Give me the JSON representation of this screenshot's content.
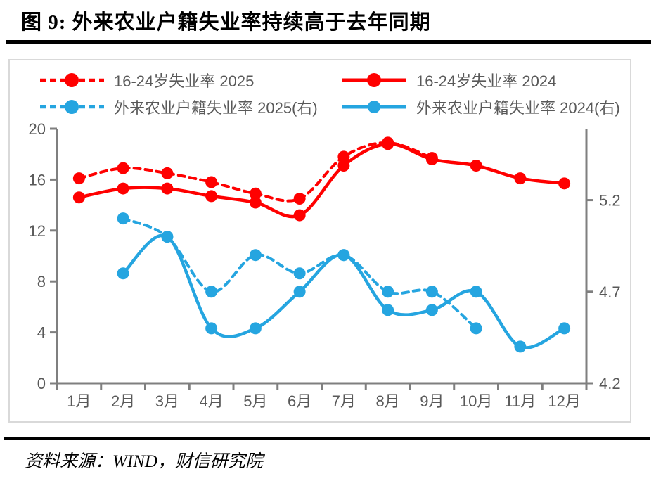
{
  "page": {
    "title": "图 9:  外来农业户籍失业率持续高于去年同期",
    "source": "资料来源：WIND，财信研究院"
  },
  "colors": {
    "red": "#FF0000",
    "blue": "#25A5E0",
    "axis_line": "#7F7F7F",
    "tick_text": "#595959",
    "card_border": "#D9D9D9",
    "rule": "#000000"
  },
  "chart_data": {
    "type": "line",
    "title": "外来农业户籍失业率持续高于去年同期",
    "categories": [
      "1月",
      "2月",
      "3月",
      "4月",
      "5月",
      "6月",
      "7月",
      "8月",
      "9月",
      "10月",
      "11月",
      "12月"
    ],
    "left_axis": {
      "ylim": [
        0,
        20
      ],
      "ticks": [
        0,
        4,
        8,
        12,
        16,
        20
      ]
    },
    "right_axis": {
      "ylim": [
        4.2,
        5.59
      ],
      "ticks": [
        4.2,
        4.7,
        5.2
      ]
    },
    "grid": false,
    "legend_position": "top",
    "line_smoothing": true,
    "series": [
      {
        "name": "16-24岁失业率 2025",
        "axis": "left",
        "style": "dashed",
        "color": "#FF0000",
        "values": [
          16.1,
          16.9,
          16.5,
          15.8,
          14.9,
          14.5,
          17.8,
          18.9,
          17.7,
          null,
          null,
          null
        ]
      },
      {
        "name": "16-24岁失业率 2024",
        "axis": "left",
        "style": "solid",
        "color": "#FF0000",
        "values": [
          14.6,
          15.3,
          15.3,
          14.7,
          14.2,
          13.2,
          17.1,
          18.8,
          17.6,
          17.1,
          16.1,
          15.7
        ]
      },
      {
        "name": "外来农业户籍失业率 2025(右)",
        "axis": "right",
        "style": "dashed",
        "color": "#25A5E0",
        "values": [
          null,
          5.1,
          5.0,
          4.7,
          4.9,
          4.8,
          4.9,
          4.7,
          4.7,
          4.5,
          null,
          null
        ]
      },
      {
        "name": "外来农业户籍失业率 2024(右)",
        "axis": "right",
        "style": "solid",
        "color": "#25A5E0",
        "values": [
          null,
          4.8,
          5.0,
          4.5,
          4.5,
          4.7,
          4.9,
          4.6,
          4.6,
          4.7,
          4.4,
          4.5
        ]
      }
    ]
  }
}
